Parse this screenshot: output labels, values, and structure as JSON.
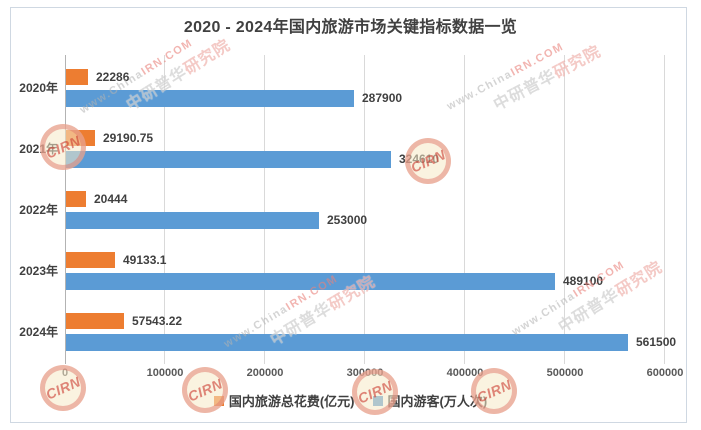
{
  "chart_data": {
    "type": "bar",
    "orientation": "horizontal",
    "title": "2020 - 2024年国内旅游市场关键指标数据一览",
    "categories": [
      "2020年",
      "2021年",
      "2022年",
      "2023年",
      "2024年"
    ],
    "series": [
      {
        "key": "domestic-tourism-spending",
        "name": "国内旅游总花费(亿元)",
        "color": "#ED7D31",
        "values": [
          22286,
          29190.75,
          20444,
          49133.1,
          57543.22
        ],
        "value_labels": [
          "22286",
          "29190.75",
          "20444",
          "49133.1",
          "57543.22"
        ]
      },
      {
        "key": "domestic-visitors",
        "name": "国内游客(万人次)",
        "color": "#5B9BD5",
        "values": [
          287900,
          324610,
          253000,
          489100,
          561500
        ],
        "value_labels": [
          "287900",
          "324610",
          "253000",
          "489100",
          "561500"
        ]
      }
    ],
    "xlim": [
      0,
      600000
    ],
    "xticks": [
      0,
      100000,
      200000,
      300000,
      400000,
      500000,
      600000
    ],
    "xtick_labels": [
      "0",
      "100000",
      "200000",
      "300000",
      "400000",
      "500000",
      "600000"
    ],
    "grid": true,
    "legend_position": "bottom"
  },
  "watermark": {
    "url_prefix": "www.China",
    "url_suffix": "IRN.COM",
    "cjk_prefix": "中研普华",
    "cjk_suffix": "研究院",
    "logo_text": "CIRN"
  }
}
